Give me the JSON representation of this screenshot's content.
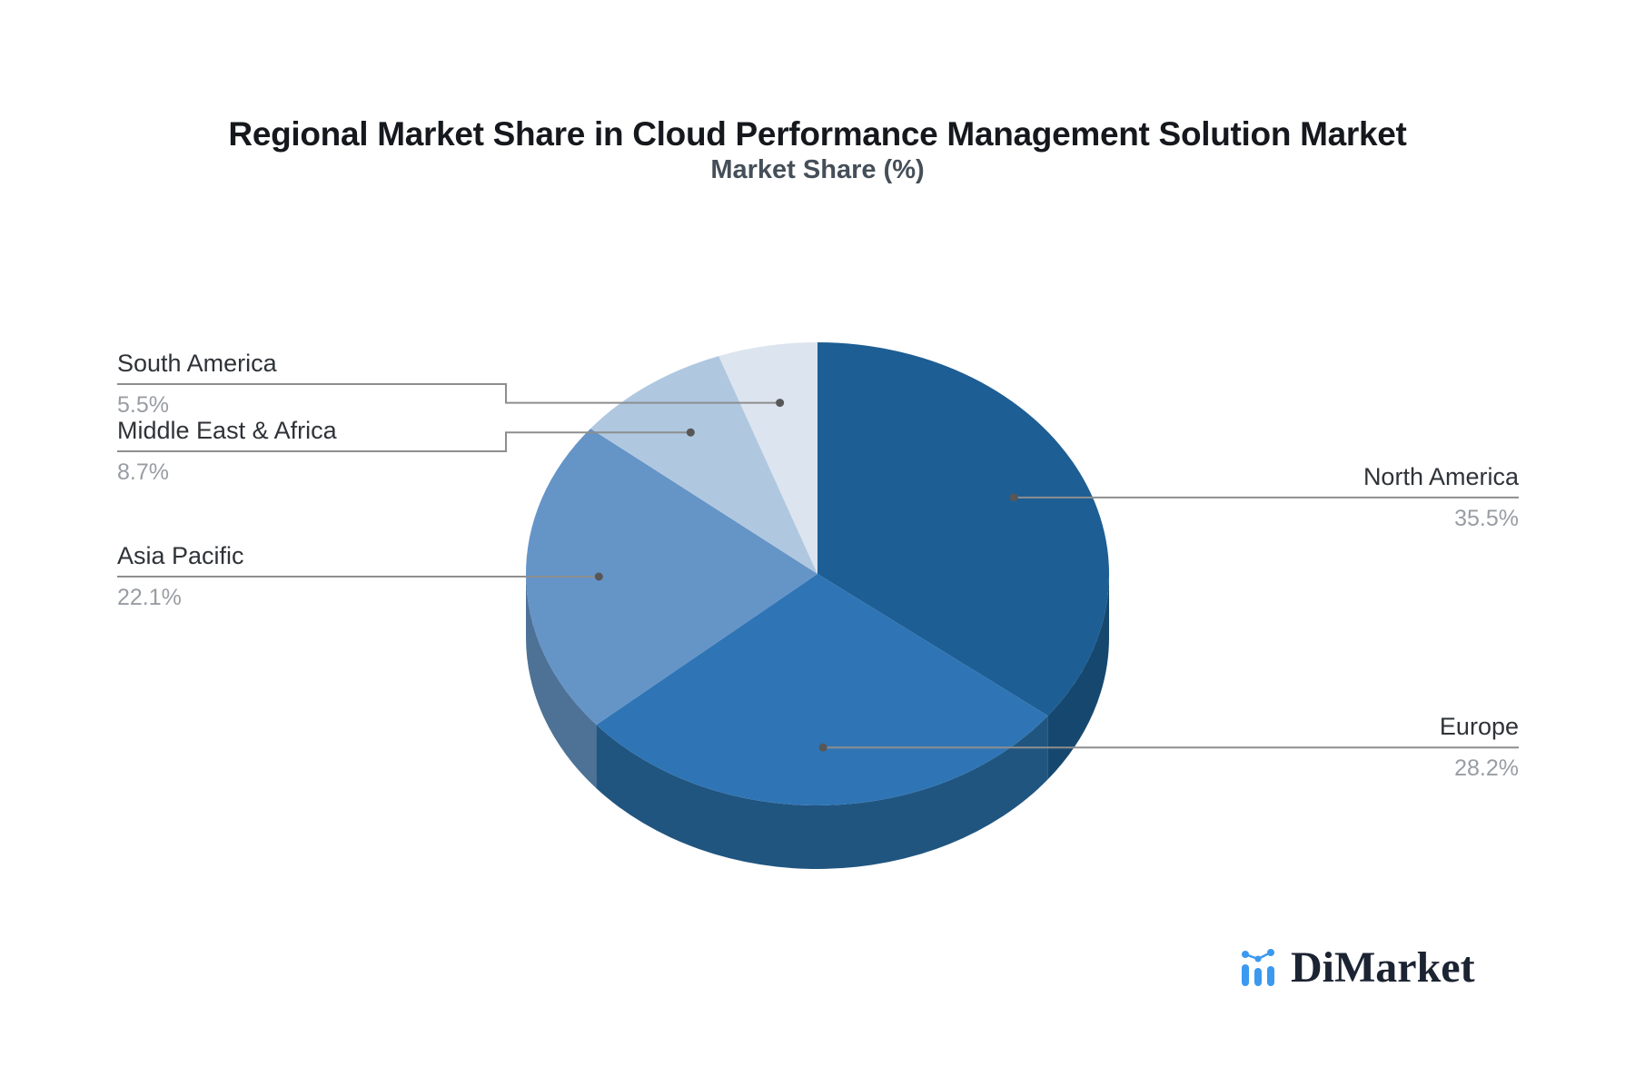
{
  "chart_data": {
    "type": "pie",
    "style": "3d-extruded",
    "title": "Regional Market Share in Cloud Performance Management Solution Market",
    "subtitle": "Market Share (%)",
    "unit": "%",
    "start_angle": "12-oclock-clockwise",
    "legend_position": "none",
    "labels": "leader-lines-with-percent",
    "slices": [
      {
        "label": "North America",
        "value": 35.5,
        "pct_label": "35.5%",
        "color": "#1d5e94",
        "side_color": "#16486f",
        "label_side": "right"
      },
      {
        "label": "Europe",
        "value": 28.2,
        "pct_label": "28.2%",
        "color": "#2f75b5",
        "side_color": "#205580",
        "label_side": "right"
      },
      {
        "label": "Asia Pacific",
        "value": 22.1,
        "pct_label": "22.1%",
        "color": "#6594c7",
        "side_color": "#4d7296",
        "label_side": "left"
      },
      {
        "label": "Middle East & Africa",
        "value": 8.7,
        "pct_label": "8.7%",
        "color": "#afc8e0",
        "side_color": "#8398ab",
        "label_side": "left"
      },
      {
        "label": "South America",
        "value": 5.5,
        "pct_label": "5.5%",
        "color": "#dce4ef",
        "side_color": "#a8b0ba",
        "label_side": "left"
      }
    ],
    "leader_line_color": "#8e8e8e",
    "label_text_color": "#2f3338",
    "value_text_color": "#999da3"
  },
  "branding": {
    "logo_text": "DiMarket",
    "logo_icon": "bar-chart-with-trend-dots",
    "logo_icon_color": "#3c99f0"
  }
}
